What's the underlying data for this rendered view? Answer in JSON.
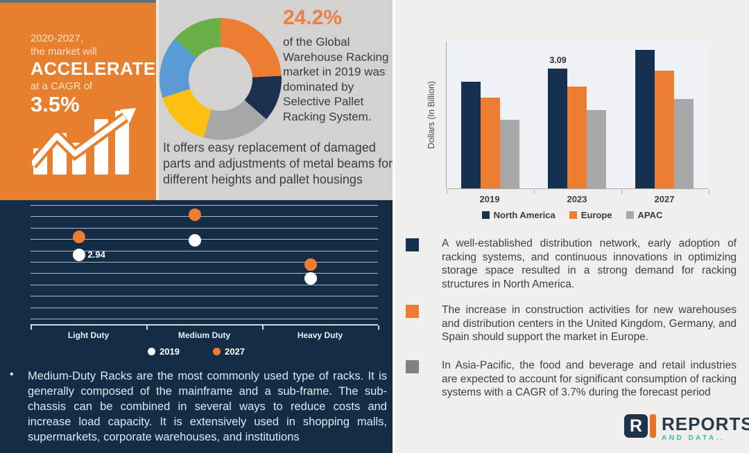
{
  "accelerate_panel": {
    "period_line": "2020-2027,",
    "subtitle_line": "the market will",
    "headline": "ACCELERATE",
    "cagr_line": "at a CAGR of",
    "cagr_value": "3.5%"
  },
  "donut_section": {
    "stat_value": "24.2%",
    "stat_text": "of the Global Warehouse Racking market in 2019 was dominated by Selective Pallet Racking System.",
    "caption": "It offers easy replacement of damaged parts and adjustments of metal beams for different heights and pallet housings"
  },
  "medium_duty_note": "Medium-Duty Racks are the most commonly used type of racks. It is generally composed of the mainframe and a sub-frame. The sub-chassis can be combined in several ways to reduce costs and increase load capacity. It is extensively used in shopping malls, supermarkets, corporate warehouses, and institutions",
  "insights": [
    {
      "color": "#16304f",
      "text": "A well-established distribution network, early adoption of racking systems, and continuous innovations in optimizing storage space resulted in a strong demand for racking structures in North America."
    },
    {
      "color": "#ed7d31",
      "text": "The increase in construction activities for new warehouses and distribution centers in the United Kingdom, Germany, and Spain should support the market in Europe."
    },
    {
      "color": "#808080",
      "text": "In Asia-Pacific, the food and beverage and retail industries are expected to account for significant consumption of racking systems with a CAGR of 3.7% during the forecast period"
    }
  ],
  "logo": {
    "mark_letter": "R",
    "brand": "REPORTS",
    "tagline": "AND DATA.."
  },
  "colors": {
    "orange_panel": "#e87f2e",
    "gray_panel": "#d3d2d0",
    "navy_panel": "#152c45",
    "right_panel": "#f0efec",
    "accent_orange": "#ed7d31",
    "accent_navy": "#16304f",
    "accent_gray": "#a8a8a8",
    "logo_teal": "#41b7ab"
  },
  "chart_data": [
    {
      "id": "donut",
      "type": "pie",
      "subtype": "donut",
      "labels_shown": false,
      "segments": [
        {
          "label": "Selective Pallet Racking System",
          "value": 24.2,
          "color": "#ed7d31"
        },
        {
          "label": "unlabeled-navy",
          "value": 12.3,
          "color": "#1c2f4e"
        },
        {
          "label": "unlabeled-gray",
          "value": 18.0,
          "color": "#a7a7a7"
        },
        {
          "label": "unlabeled-yellow",
          "value": 15.5,
          "color": "#fdc010"
        },
        {
          "label": "unlabeled-blue",
          "value": 16.5,
          "color": "#5b9bd5"
        },
        {
          "label": "unlabeled-green",
          "value": 13.5,
          "color": "#6aae47"
        }
      ],
      "note": "only the 24.2% share is stated in the image; remaining slice values estimated from arc angles"
    },
    {
      "id": "dotplot",
      "type": "scatter",
      "subtype": "dot-plot",
      "categories": [
        "Light Duty",
        "Medium Duty",
        "Heavy Duty"
      ],
      "series": [
        {
          "name": "2019",
          "color": "#ffffff",
          "values": [
            2.94,
            3.19,
            2.54
          ]
        },
        {
          "name": "2027",
          "color": "#ed7d31",
          "values": [
            3.25,
            3.63,
            2.78
          ]
        }
      ],
      "data_labels": [
        {
          "series": "2019",
          "category": "Light Duty",
          "text": "2.94"
        }
      ],
      "ylim": [
        1.85,
        3.8
      ],
      "gridline_count": 11,
      "legend_position": "bottom",
      "note": "only 2.94 is labeled in the image; other values estimated from gridlines"
    },
    {
      "id": "bars",
      "type": "bar",
      "categories": [
        "2019",
        "2023",
        "2027"
      ],
      "series": [
        {
          "name": "North America",
          "color": "#16304f",
          "values": [
            2.74,
            3.09,
            3.57
          ]
        },
        {
          "name": "Europe",
          "color": "#ed7d31",
          "values": [
            2.33,
            2.63,
            3.04
          ]
        },
        {
          "name": "APAC",
          "color": "#a8a8a8",
          "values": [
            1.77,
            2.01,
            2.31
          ]
        }
      ],
      "ylabel": "Dollars (In Billion)",
      "data_labels": [
        {
          "series": "North America",
          "category": "2023",
          "text": "3.09"
        }
      ],
      "ylim": [
        0,
        3.8
      ],
      "legend_position": "bottom",
      "note": "only 3.09 is labeled in the image; other values estimated from bar heights"
    }
  ]
}
